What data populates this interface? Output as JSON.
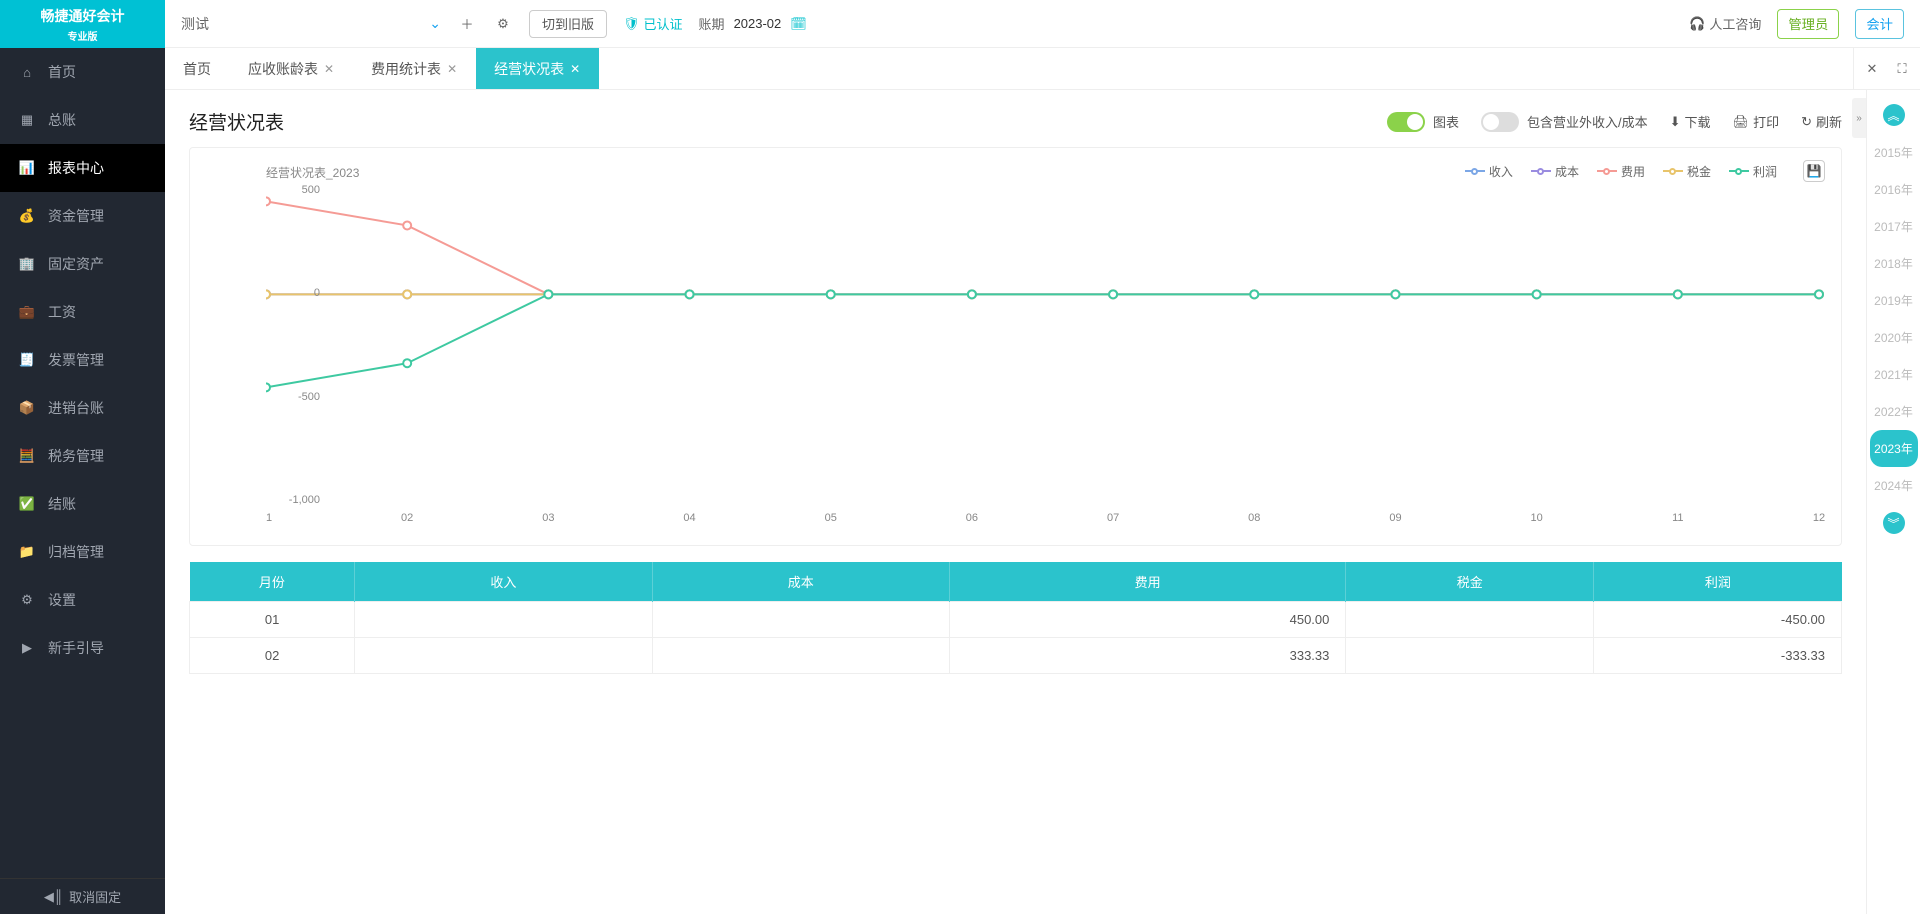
{
  "logo": {
    "title": "畅捷通好会计",
    "subtitle": "专业版"
  },
  "sidebar": {
    "items": [
      {
        "label": "首页",
        "icon": "home"
      },
      {
        "label": "总账",
        "icon": "ledger"
      },
      {
        "label": "报表中心",
        "icon": "chart"
      },
      {
        "label": "资金管理",
        "icon": "money"
      },
      {
        "label": "固定资产",
        "icon": "asset"
      },
      {
        "label": "工资",
        "icon": "salary"
      },
      {
        "label": "发票管理",
        "icon": "invoice"
      },
      {
        "label": "进销台账",
        "icon": "stock"
      },
      {
        "label": "税务管理",
        "icon": "tax"
      },
      {
        "label": "结账",
        "icon": "close-period"
      },
      {
        "label": "归档管理",
        "icon": "archive"
      },
      {
        "label": "设置",
        "icon": "gear"
      },
      {
        "label": "新手引导",
        "icon": "guide"
      }
    ],
    "active_index": 2,
    "pin_label": "取消固定"
  },
  "topbar": {
    "company": "测试",
    "switch_btn": "切到旧版",
    "verified": "已认证",
    "period_label": "账期",
    "period_value": "2023-02",
    "consult": "人工咨询",
    "admin": "管理员",
    "role": "会计"
  },
  "tabs": {
    "items": [
      {
        "label": "首页",
        "closable": false
      },
      {
        "label": "应收账龄表",
        "closable": true
      },
      {
        "label": "费用统计表",
        "closable": true
      },
      {
        "label": "经营状况表",
        "closable": true
      }
    ],
    "active_index": 3
  },
  "report": {
    "title": "经营状况表",
    "toggle_chart_label": "图表",
    "toggle_extra_label": "包含营业外收入/成本",
    "download": "下载",
    "print": "打印",
    "refresh": "刷新"
  },
  "chart": {
    "title": "经营状况表_2023",
    "series": [
      {
        "name": "收入",
        "key": "income",
        "color": "#7ca7e6",
        "values": [
          0,
          0,
          0,
          0,
          0,
          0,
          0,
          0,
          0,
          0,
          0,
          0
        ]
      },
      {
        "name": "成本",
        "key": "cost",
        "color": "#9a8ce0",
        "values": [
          0,
          0,
          0,
          0,
          0,
          0,
          0,
          0,
          0,
          0,
          0,
          0
        ]
      },
      {
        "name": "费用",
        "key": "expense",
        "color": "#f59b95",
        "values": [
          450,
          333.33,
          0,
          0,
          0,
          0,
          0,
          0,
          0,
          0,
          0,
          0
        ]
      },
      {
        "name": "税金",
        "key": "tax",
        "color": "#e8c46b",
        "values": [
          0,
          0,
          0,
          0,
          0,
          0,
          0,
          0,
          0,
          0,
          0,
          0
        ]
      },
      {
        "name": "利润",
        "key": "profit",
        "color": "#3ec9a1",
        "values": [
          -450,
          -333.33,
          0,
          0,
          0,
          0,
          0,
          0,
          0,
          0,
          0,
          0
        ]
      }
    ],
    "xlabels": [
      "01",
      "02",
      "03",
      "04",
      "05",
      "06",
      "07",
      "08",
      "09",
      "10",
      "11",
      "12"
    ],
    "ymin": -1000,
    "ymax": 500,
    "ystep": 500,
    "yticks": [
      "500",
      "0",
      "-500",
      "-1,000"
    ],
    "background": "#ffffff"
  },
  "table": {
    "columns": [
      "月份",
      "收入",
      "成本",
      "费用",
      "税金",
      "利润"
    ],
    "col_align": [
      "center",
      "right",
      "right",
      "right",
      "right",
      "right"
    ],
    "col_width_pct": [
      10,
      18,
      18,
      24,
      15,
      15
    ],
    "rows": [
      [
        "01",
        "",
        "",
        "450.00",
        "",
        "-450.00"
      ],
      [
        "02",
        "",
        "",
        "333.33",
        "",
        "-333.33"
      ]
    ]
  },
  "year_rail": {
    "years": [
      "2015年",
      "2016年",
      "2017年",
      "2018年",
      "2019年",
      "2020年",
      "2021年",
      "2022年",
      "2023年",
      "2024年"
    ],
    "active_index": 8
  },
  "colors": {
    "accent": "#2bc3cc",
    "sidebar_bg": "#222832",
    "green_toggle": "#8bd24a"
  }
}
